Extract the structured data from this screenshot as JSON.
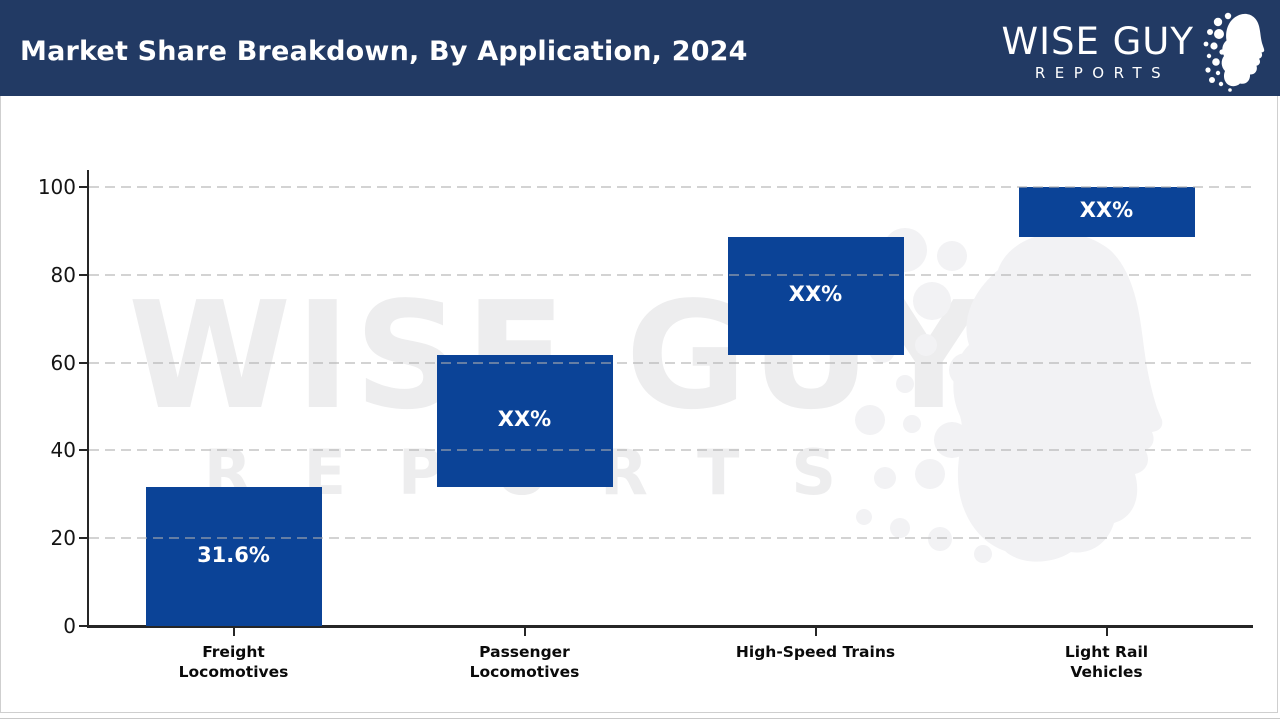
{
  "header": {
    "title": "Market Share Breakdown, By Application, 2024",
    "logo": {
      "line1": "WISE GUY",
      "line2": "REPORTS"
    }
  },
  "watermark": {
    "line1": "WISE GUY",
    "line2": "REPORTS"
  },
  "colors": {
    "header_bg": "#223a64",
    "bar": "#0b4397",
    "bar_label_text": "#ffffff",
    "axis": "#262626",
    "grid": "#d9d9d9",
    "watermark": "#ededee",
    "category_text": "#0a0a0a"
  },
  "chart_data": {
    "type": "bar",
    "subtype": "waterfall",
    "title": "Market Share Breakdown, By Application, 2024",
    "categories": [
      "Freight\nLocomotives",
      "Passenger\nLocomotives",
      "High-Speed Trains",
      "Light Rail\nVehicles"
    ],
    "segments": [
      {
        "category": "Freight Locomotives",
        "start": 0,
        "end": 31.6,
        "label": "31.6%"
      },
      {
        "category": "Passenger Locomotives",
        "start": 31.6,
        "end": 61.8,
        "label": "XX%"
      },
      {
        "category": "High-Speed Trains",
        "start": 61.8,
        "end": 88.7,
        "label": "XX%"
      },
      {
        "category": "Light Rail Vehicles",
        "start": 88.7,
        "end": 100,
        "label": "XX%"
      }
    ],
    "yticks": [
      0,
      20,
      40,
      60,
      80,
      100
    ],
    "ylim": [
      0,
      104
    ],
    "xlabel": "",
    "ylabel": "",
    "grid": "horizontal-dashed",
    "legend": "none",
    "bar_color": "#0b4397",
    "unit": "%"
  }
}
